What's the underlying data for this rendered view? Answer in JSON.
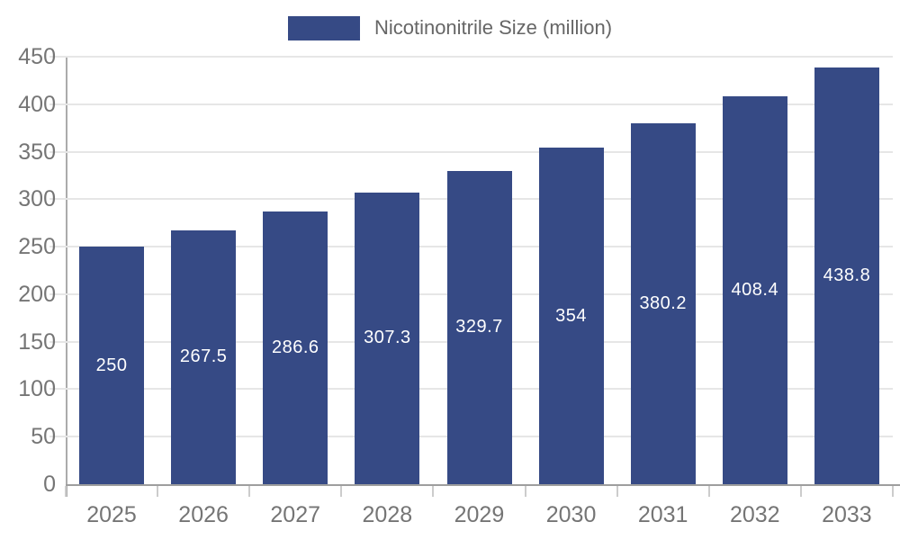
{
  "chart_data": {
    "type": "bar",
    "title": "",
    "legend": {
      "label": "Nicotinonitrile Size (million)",
      "position": "top"
    },
    "categories": [
      "2025",
      "2026",
      "2027",
      "2028",
      "2029",
      "2030",
      "2031",
      "2032",
      "2033"
    ],
    "series": [
      {
        "name": "Nicotinonitrile Size (million)",
        "values": [
          250,
          267.5,
          286.6,
          307.3,
          329.7,
          354,
          380.2,
          408.4,
          438.8
        ],
        "labels": [
          "250",
          "267.5",
          "286.6",
          "307.3",
          "329.7",
          "354",
          "380.2",
          "408.4",
          "438.8"
        ]
      }
    ],
    "xlabel": "",
    "ylabel": "",
    "ylim": [
      0,
      450
    ],
    "ytick_interval": 50,
    "yticks": [
      "0",
      "50",
      "100",
      "150",
      "200",
      "250",
      "300",
      "350",
      "400",
      "450"
    ],
    "grid": true,
    "colors": {
      "bar": "#364a85",
      "value_label": "#ffffff",
      "axis_text": "#757575",
      "legend_text": "#666666",
      "grid_line": "#e6e6e6",
      "axis_line": "#9e9e9e",
      "tick_line": "#cccccc",
      "background": "#ffffff"
    }
  }
}
